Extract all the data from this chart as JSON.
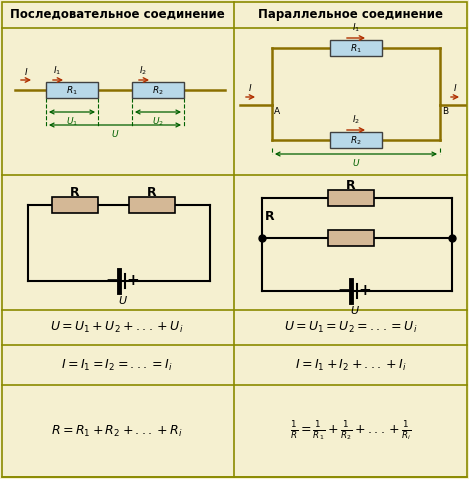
{
  "bg_color": "#f5f0d0",
  "border_color": "#8b8b00",
  "title_left": "Последовательное соединение",
  "title_right": "Параллельное соединение",
  "formulas_left": [
    "$U = U_1 + U_2 + ... + U_i$",
    "$I = I_1 = I_2 = ... = I_i$",
    "$R = R_1 + R_2 + ... + R_i$"
  ],
  "formulas_right": [
    "$U = U_1 = U_2 = ... = U_i$",
    "$I = I_1 + I_2 + ... + I_i$",
    "$\\frac{1}{R} = \\frac{1}{R_1} + \\frac{1}{R_2} + ... + \\frac{1}{R_i}$"
  ],
  "resistor_fill_blue": "#b8d8e8",
  "resistor_fill_tan": "#d4b896",
  "wire_color": "#8b7000",
  "arrow_color": "#b03000",
  "green_color": "#006000",
  "text_color": "#000000",
  "title_fontsize": 8.5,
  "formula_fontsize": 9,
  "hlines": [
    28,
    175,
    310,
    345,
    385,
    477
  ],
  "vline": 234
}
